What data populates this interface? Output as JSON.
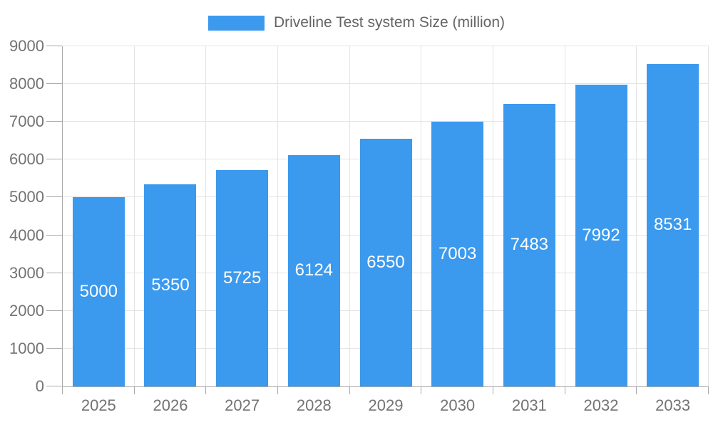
{
  "chart_data": {
    "type": "bar",
    "title": "",
    "legend": {
      "label": "Driveline Test system Size (million)",
      "position": "top"
    },
    "categories": [
      "2025",
      "2026",
      "2027",
      "2028",
      "2029",
      "2030",
      "2031",
      "2032",
      "2033"
    ],
    "series": [
      {
        "name": "Driveline Test system Size (million)",
        "values": [
          5000,
          5350,
          5725,
          6124,
          6550,
          7003,
          7483,
          7992,
          8531
        ]
      }
    ],
    "xlabel": "",
    "ylabel": "",
    "ylim": [
      0,
      9000
    ],
    "ytick_step": 1000,
    "grid": true,
    "bar_value_labels": "inside-center",
    "colors": {
      "bar": "#3B99EE",
      "grid": "#E4E4E4",
      "axis": "#A9A9A9",
      "tick_label": "#737373",
      "legend_text": "#646466",
      "bar_label": "#FFFFFF",
      "background": "#FFFFFF"
    }
  }
}
